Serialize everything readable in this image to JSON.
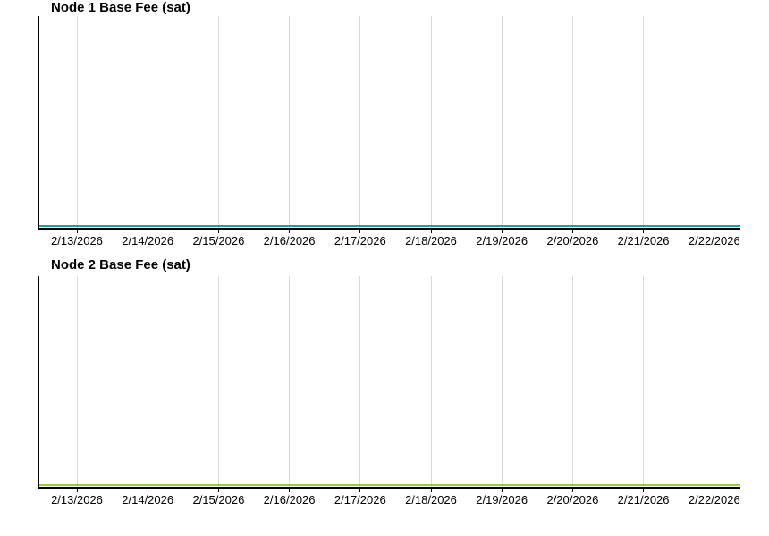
{
  "palette": {
    "axis": "#000000",
    "gridline": "#d9d9d9",
    "text": "#000000",
    "node1_line": "#17a2a2",
    "node2_line": "#9acd32"
  },
  "chart_data": [
    {
      "type": "line",
      "title": "Node 1 Base Fee (sat)",
      "x": [
        "2/13/2026",
        "2/14/2026",
        "2/15/2026",
        "2/16/2026",
        "2/17/2026",
        "2/18/2026",
        "2/19/2026",
        "2/20/2026",
        "2/21/2026",
        "2/22/2026"
      ],
      "series": [
        {
          "name": "Node 1 base fee",
          "color": "#17a2a2",
          "values": [
            0,
            0,
            0,
            0,
            0,
            0,
            0,
            0,
            0,
            0
          ]
        }
      ],
      "xlabel": "",
      "ylabel": "",
      "ylim": [
        0,
        1
      ],
      "grid": "vertical",
      "legend": "none"
    },
    {
      "type": "line",
      "title": "Node 2 Base Fee (sat)",
      "x": [
        "2/13/2026",
        "2/14/2026",
        "2/15/2026",
        "2/16/2026",
        "2/17/2026",
        "2/18/2026",
        "2/19/2026",
        "2/20/2026",
        "2/21/2026",
        "2/22/2026"
      ],
      "series": [
        {
          "name": "Node 2 base fee",
          "color": "#9acd32",
          "values": [
            0,
            0,
            0,
            0,
            0,
            0,
            0,
            0,
            0,
            0
          ]
        }
      ],
      "xlabel": "",
      "ylabel": "",
      "ylim": [
        0,
        1
      ],
      "grid": "vertical",
      "legend": "none"
    }
  ]
}
